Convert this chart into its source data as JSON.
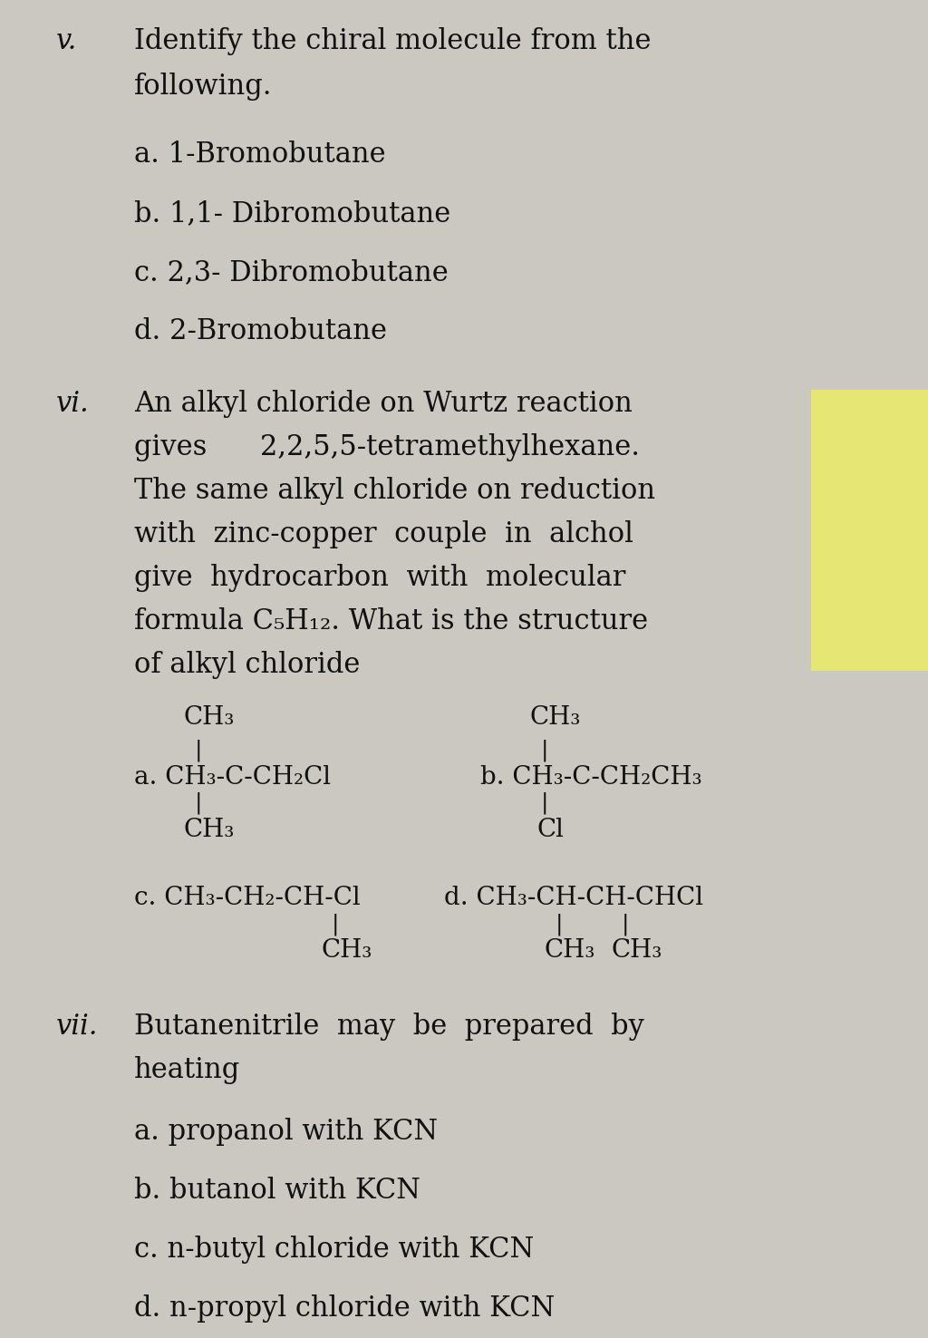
{
  "bg_color": "#cac8c0",
  "text_color": "#111111",
  "highlight_color": "#e6e675",
  "fs": 22,
  "fs_chem": 20,
  "fs_pipe": 18,
  "v_label": "v.",
  "v_line1": "Identify the chiral molecule from the",
  "v_line2": "following.",
  "v_a": "a. 1-Bromobutane",
  "v_b": "b. 1,1- Dibromobutane",
  "v_c": "c. 2,3- Dibromobutane",
  "v_d": "d. 2-Bromobutane",
  "vi_label": "vi.",
  "vi_line1": "An alkyl chloride on Wurtz reaction",
  "vi_line2": "gives      2,2,5,5-tetramethylhexane.",
  "vi_line3": "The same alkyl chloride on reduction",
  "vi_line4": "with  zinc-copper  couple  in  alchol",
  "vi_line5": "give  hydrocarbon  with  molecular",
  "vi_line6": "formula C₅H₁₂. What is the structure",
  "vi_line7": "of alkyl chloride",
  "vii_label": "vii.",
  "vii_line1": "Butanenitrile  may  be  prepared  by",
  "vii_line2": "heating",
  "vii_a": "a. propanol with KCN",
  "vii_b": "b. butanol with KCN",
  "vii_c": "c. n-butyl chloride with KCN",
  "vii_d": "d. n-propyl chloride with KCN"
}
